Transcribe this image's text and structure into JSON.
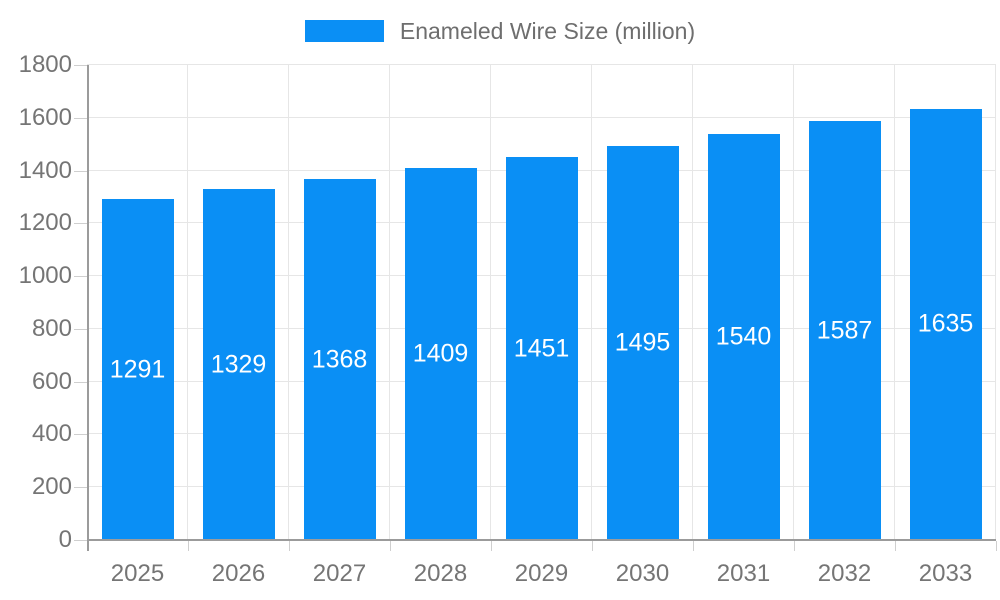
{
  "legend": {
    "label": "Enameled Wire Size (million)"
  },
  "colors": {
    "bar": "#0A8FF5",
    "bar_label": "#ffffff",
    "axis_line": "#9b9b9b",
    "gridline": "#e6e6e6",
    "axis_label": "#757575",
    "legend_text": "#6e6e6e"
  },
  "chart_data": {
    "type": "bar",
    "title": "Enameled Wire Size (million)",
    "categories": [
      "2025",
      "2026",
      "2027",
      "2028",
      "2029",
      "2030",
      "2031",
      "2032",
      "2033"
    ],
    "values": [
      1291,
      1329,
      1368,
      1409,
      1451,
      1495,
      1540,
      1587,
      1635
    ],
    "xlabel": "",
    "ylabel": "",
    "ylim": [
      0,
      1800
    ],
    "ytick_step": 200,
    "ytick_labels": [
      "0",
      "200",
      "400",
      "600",
      "800",
      "1000",
      "1200",
      "1400",
      "1600",
      "1800"
    ],
    "bar_labels": [
      "1291",
      "1329",
      "1368",
      "1409",
      "1451",
      "1495",
      "1540",
      "1587",
      "1635"
    ],
    "grid": true,
    "legend_position": "top-center",
    "bar_label_position": "center-of-bar"
  }
}
